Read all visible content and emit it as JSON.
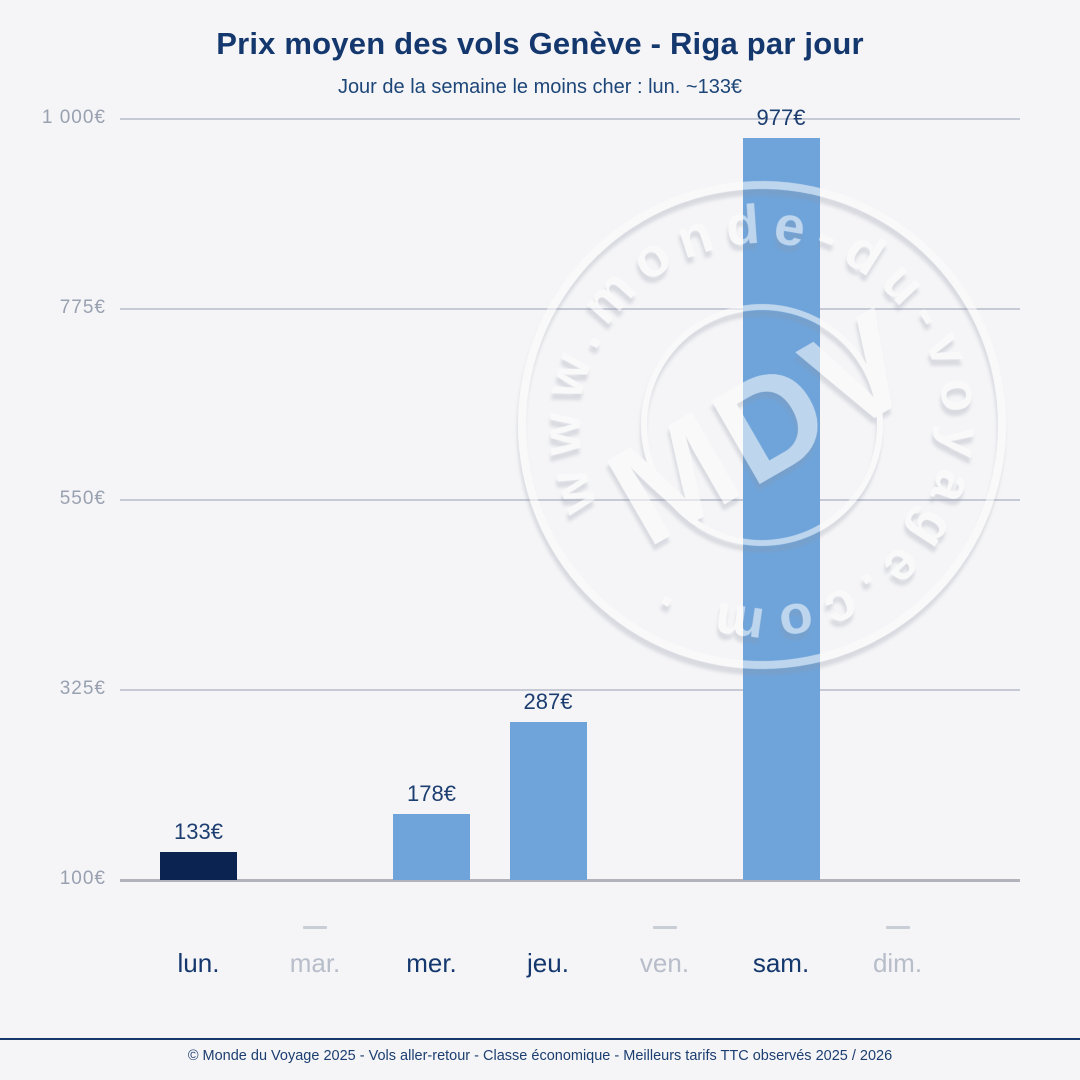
{
  "title": "Prix moyen des vols Genève - Riga par jour",
  "subtitle": "Jour de la semaine le moins cher : lun. ~133€",
  "watermark": {
    "ring_text": "www.monde-du-voyage.com ·",
    "center_text": "MDV"
  },
  "footer": {
    "text": "© Monde du Voyage 2025 - Vols aller-retour - Classe économique - Meilleurs tarifs TTC observés 2025 / 2026"
  },
  "colors": {
    "background": "#f5f5f7",
    "title": "#14386d",
    "subtitle": "#1d4678",
    "bar": "#6fa4da",
    "bar_highlight": "#0a2351",
    "value_label": "#1c3e70",
    "y_tick_label": "#99a1b1",
    "gridline": "#c6cad5",
    "baseline": "#b2b2ba",
    "x_label_active": "#14386d",
    "x_label_inactive": "#b7bdc9",
    "footer_line": "#16386b"
  },
  "chart_data": {
    "type": "bar",
    "categories": [
      "lun.",
      "mar.",
      "mer.",
      "jeu.",
      "ven.",
      "sam.",
      "dim."
    ],
    "values": [
      133,
      null,
      178,
      287,
      null,
      977,
      null
    ],
    "value_labels": [
      "133€",
      null,
      "178€",
      "287€",
      null,
      "977€",
      null
    ],
    "no_data_marker": "–",
    "highlight_index": 0,
    "highlight_meaning": "cheapest day",
    "y_ticks": [
      100,
      325,
      550,
      775,
      1000
    ],
    "y_tick_labels": [
      "100€",
      "325€",
      "550€",
      "775€",
      "1 000€"
    ],
    "ylim": [
      100,
      1000
    ],
    "xlabel": "",
    "ylabel": "",
    "grid": true,
    "legend": false,
    "title": "Prix moyen des vols Genève - Riga par jour",
    "subtitle": "Jour de la semaine le moins cher : lun. ~133€"
  }
}
